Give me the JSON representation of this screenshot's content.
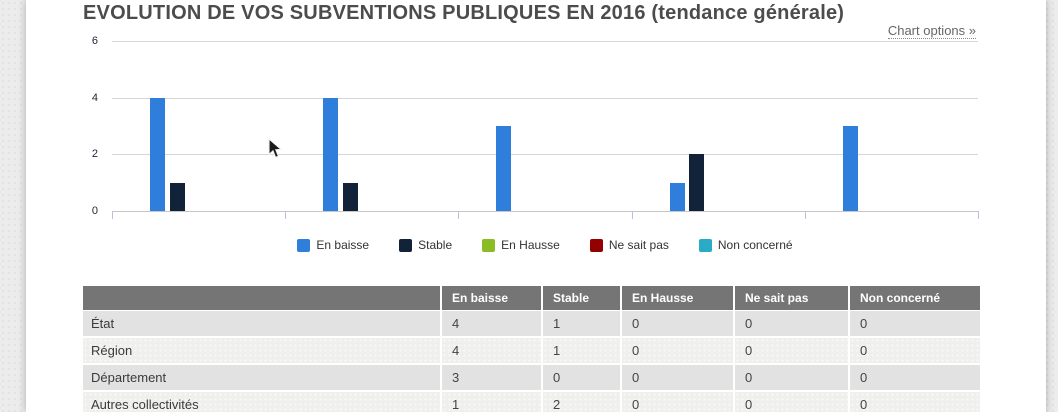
{
  "page": {
    "title": "EVOLUTION DE VOS SUBVENTIONS PUBLIQUES EN 2016 (tendance générale)",
    "chart_options_label": "Chart options »"
  },
  "chart_data": {
    "type": "bar",
    "title": "EVOLUTION DE VOS SUBVENTIONS PUBLIQUES EN 2016 (tendance générale)",
    "categories": [
      "État",
      "Région",
      "Département",
      "Autres collectivités",
      ""
    ],
    "series": [
      {
        "name": "En baisse",
        "color": "#2f7edb",
        "values": [
          4,
          4,
          3,
          1,
          3
        ]
      },
      {
        "name": "Stable",
        "color": "#122339",
        "values": [
          1,
          1,
          0,
          2,
          0
        ]
      },
      {
        "name": "En Hausse",
        "color": "#8bbb25",
        "values": [
          0,
          0,
          0,
          0,
          0
        ]
      },
      {
        "name": "Ne sait pas",
        "color": "#930000",
        "values": [
          0,
          0,
          0,
          0,
          0
        ]
      },
      {
        "name": "Non concerné",
        "color": "#29abc6",
        "values": [
          0,
          0,
          0,
          0,
          0
        ]
      }
    ],
    "ylim": [
      0,
      6
    ],
    "yticks": [
      0,
      2,
      4,
      6
    ],
    "grid": true,
    "legend_position": "bottom",
    "xlabel": "",
    "ylabel": ""
  },
  "table": {
    "columns": [
      "",
      "En baisse",
      "Stable",
      "En Hausse",
      "Ne sait pas",
      "Non concerné"
    ],
    "rows": [
      {
        "label": "État",
        "values": [
          "4",
          "1",
          "0",
          "0",
          "0"
        ]
      },
      {
        "label": "Région",
        "values": [
          "4",
          "1",
          "0",
          "0",
          "0"
        ]
      },
      {
        "label": "Département",
        "values": [
          "3",
          "0",
          "0",
          "0",
          "0"
        ]
      },
      {
        "label": "Autres collectivités",
        "values": [
          "1",
          "2",
          "0",
          "0",
          "0"
        ]
      }
    ]
  }
}
